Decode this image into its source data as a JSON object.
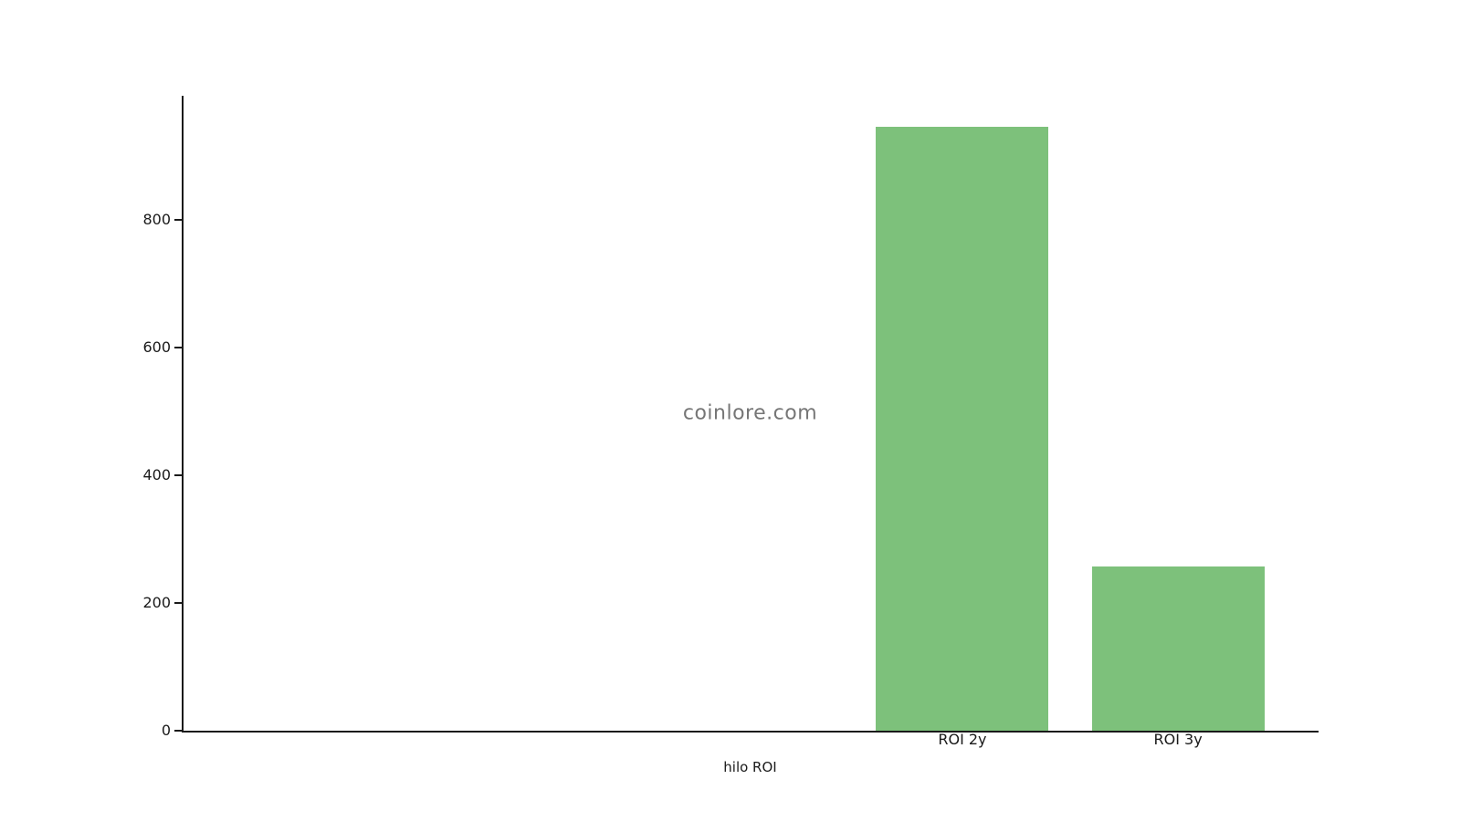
{
  "chart_data": {
    "type": "bar",
    "title": "",
    "xlabel": "hilo ROI",
    "ylabel": "",
    "categories": [
      "ROI 2y",
      "ROI 3y"
    ],
    "values": [
      946,
      257
    ],
    "yticks": [
      0,
      200,
      400,
      600,
      800
    ],
    "ylim": [
      0,
      995
    ],
    "grid": false,
    "legend": false,
    "bar_color": "#7dc17b",
    "axis_color": "#1a1a1a",
    "text_color": "#1a1a1a",
    "watermark": {
      "text": "coinlore.com",
      "color": "#767676"
    },
    "layout": {
      "legend_position": "none",
      "bar_center_frac": [
        0.687,
        0.877
      ],
      "bar_width_frac": 0.152
    }
  }
}
